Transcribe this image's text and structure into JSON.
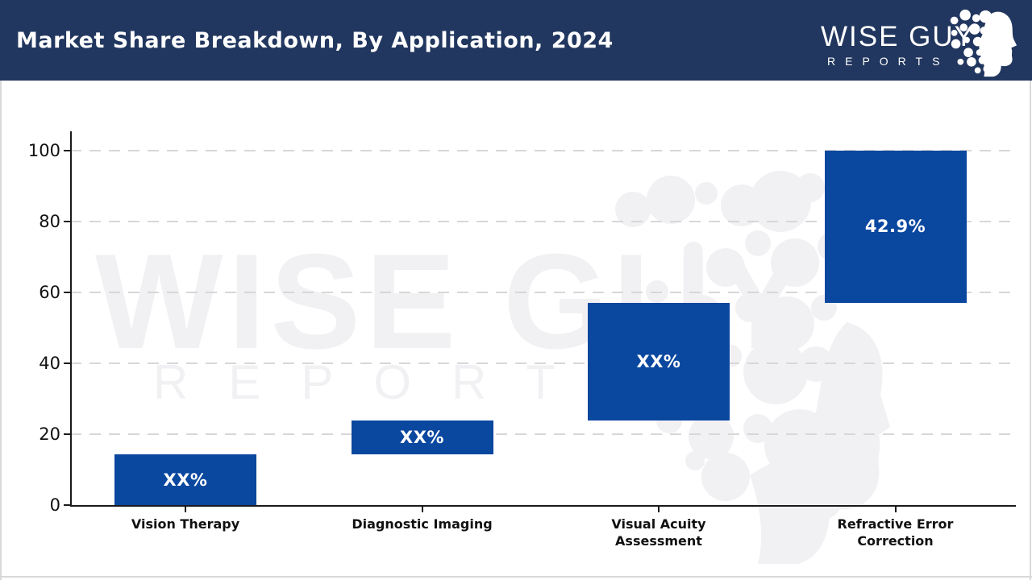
{
  "header": {
    "title": "Market Share Breakdown, By Application, 2024",
    "logo": {
      "name": "WISE GUY",
      "tagline": "REPORTS"
    }
  },
  "watermark": {
    "name": "WISE GUY",
    "tagline": "REPORTS"
  },
  "chart_data": {
    "type": "bar",
    "subtype": "waterfall",
    "title": "Market Share Breakdown, By Application, 2024",
    "categories": [
      "Vision Therapy",
      "Diagnostic Imaging",
      "Visual Acuity Assessment",
      "Refractive Error Correction"
    ],
    "segments": [
      {
        "category_lines": [
          "Vision Therapy"
        ],
        "start": 0,
        "end": 14.3,
        "label": "XX%"
      },
      {
        "category_lines": [
          "Diagnostic Imaging"
        ],
        "start": 14.3,
        "end": 23.8,
        "label": "XX%"
      },
      {
        "category_lines": [
          "Visual Acuity",
          "Assessment"
        ],
        "start": 23.8,
        "end": 57.1,
        "label": "XX%"
      },
      {
        "category_lines": [
          "Refractive Error",
          "Correction"
        ],
        "start": 57.1,
        "end": 100,
        "label": "42.9%"
      }
    ],
    "values_displayed": [
      "XX%",
      "XX%",
      "XX%",
      "42.9%"
    ],
    "yticks": [
      0,
      20,
      40,
      60,
      80,
      100
    ],
    "ylim": [
      0,
      105
    ],
    "xlabel": "",
    "ylabel": "",
    "grid": "horizontal-dashed",
    "legend": "none",
    "colors": {
      "bar": "#0a479f",
      "header_bg": "#22375f",
      "grid": "#d7d7d7",
      "axis": "#1a1a1a",
      "watermark": "#f1f1f4",
      "bar_label_text": "#ffffff",
      "border": "#d9d9d9"
    }
  }
}
